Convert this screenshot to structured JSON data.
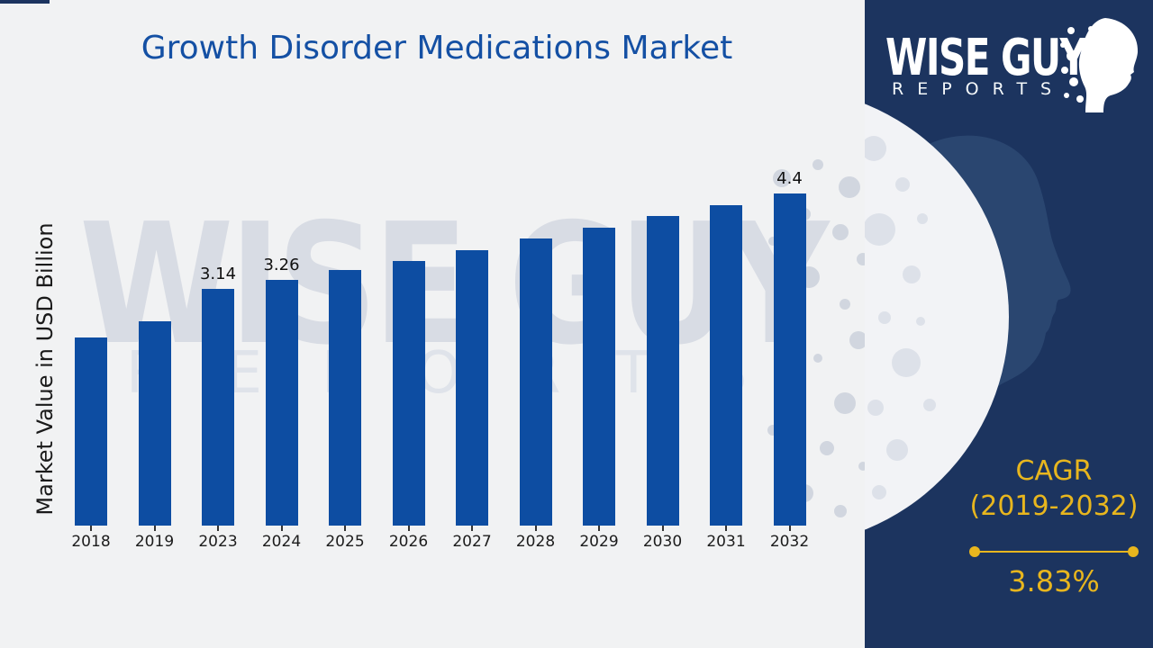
{
  "title": "Growth Disorder Medications Market",
  "y_axis_label": "Market Value in USD Billion",
  "watermark": {
    "line1": "WISE GUY",
    "line2": "REPORTS"
  },
  "brand_panel": {
    "logo_line1": "WISE GUY",
    "logo_line2": "REPORTS",
    "cagr_label": "CAGR",
    "cagr_range": "(2019-2032)",
    "cagr_value": "3.83%"
  },
  "colors": {
    "background": "#f1f2f3",
    "bar": "#0d4da2",
    "title": "#1450a4",
    "panel_navy": "#1c345f",
    "accent_gold": "#e8b61e",
    "watermark_gray": "#d8dce4",
    "face_silhouette": "#2b4872"
  },
  "chart_data": {
    "type": "bar",
    "title": "Growth Disorder Medications Market",
    "xlabel": "",
    "ylabel": "Market Value in USD Billion",
    "categories": [
      "2018",
      "2019",
      "2023",
      "2024",
      "2025",
      "2026",
      "2027",
      "2028",
      "2029",
      "2030",
      "2031",
      "2032"
    ],
    "values": [
      2.5,
      2.71,
      3.14,
      3.26,
      3.39,
      3.51,
      3.65,
      3.81,
      3.95,
      4.11,
      4.25,
      4.4
    ],
    "bar_labels": [
      "",
      "",
      "3.14",
      "3.26",
      "",
      "",
      "",
      "",
      "",
      "",
      "",
      "4.4"
    ],
    "unit": "USD Billion",
    "ylim": [
      0,
      4.6
    ],
    "grid": false,
    "legend": false,
    "bar_color": "#0d4da2"
  }
}
